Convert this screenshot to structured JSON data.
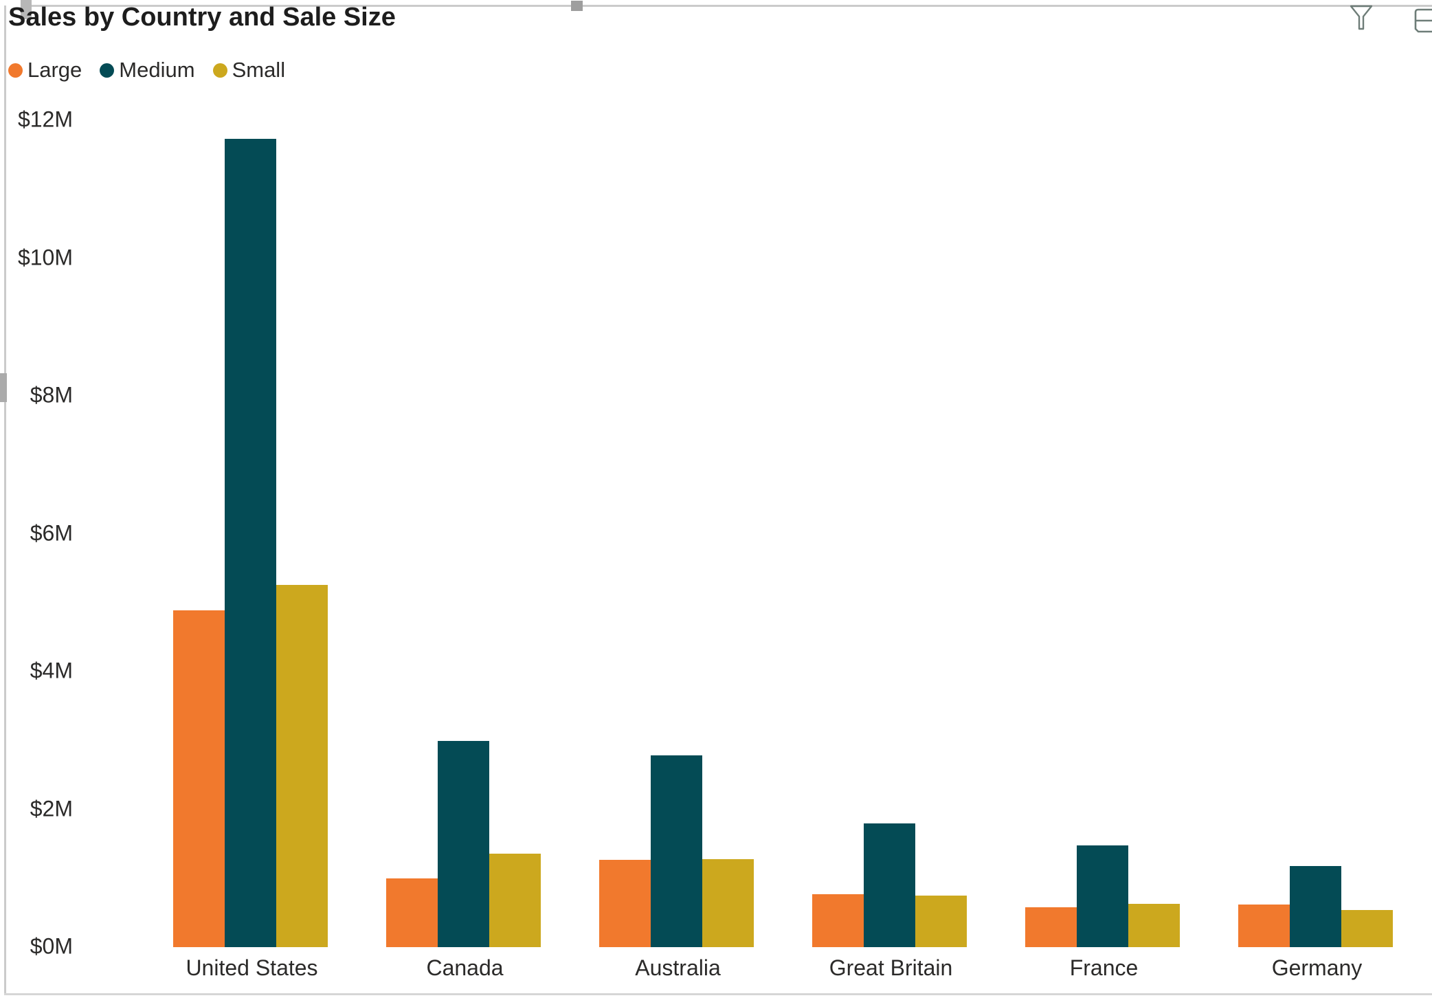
{
  "title": "Sales by Country and Sale Size",
  "header": {
    "icons": [
      {
        "name": "filter-icon",
        "glyph": "funnel"
      },
      {
        "name": "more-options-icon",
        "glyph": "clipped-box",
        "note": "partially cut off at right edge"
      }
    ]
  },
  "legend": {
    "position": "top-left",
    "items": [
      {
        "label": "Large",
        "color": "#F1792D"
      },
      {
        "label": "Medium",
        "color": "#044B55"
      },
      {
        "label": "Small",
        "color": "#CCA81E"
      }
    ]
  },
  "chart_data": {
    "type": "bar",
    "title": "Sales by Country and Sale Size",
    "categories": [
      "United States",
      "Canada",
      "Australia",
      "Great Britain",
      "France",
      "Germany"
    ],
    "series": [
      {
        "name": "Large",
        "color": "#F1792D",
        "values": [
          4.89,
          1.0,
          1.27,
          0.77,
          0.58,
          0.62
        ]
      },
      {
        "name": "Medium",
        "color": "#044B55",
        "values": [
          11.73,
          2.99,
          2.78,
          1.8,
          1.48,
          1.18
        ]
      },
      {
        "name": "Small",
        "color": "#CCA81E",
        "values": [
          5.26,
          1.36,
          1.28,
          0.75,
          0.63,
          0.54
        ]
      }
    ],
    "xlabel": "",
    "ylabel": "",
    "value_unit": "USD millions",
    "ylim": [
      0,
      12
    ],
    "yticks": [
      {
        "value": 12,
        "label": "$12M"
      },
      {
        "value": 10,
        "label": "$10M"
      },
      {
        "value": 8,
        "label": "$8M"
      },
      {
        "value": 6,
        "label": "$6M"
      },
      {
        "value": 4,
        "label": "$4M"
      },
      {
        "value": 2,
        "label": "$2M"
      },
      {
        "value": 0,
        "label": "$0M"
      }
    ],
    "grid": false,
    "legend_position": "top-left"
  }
}
